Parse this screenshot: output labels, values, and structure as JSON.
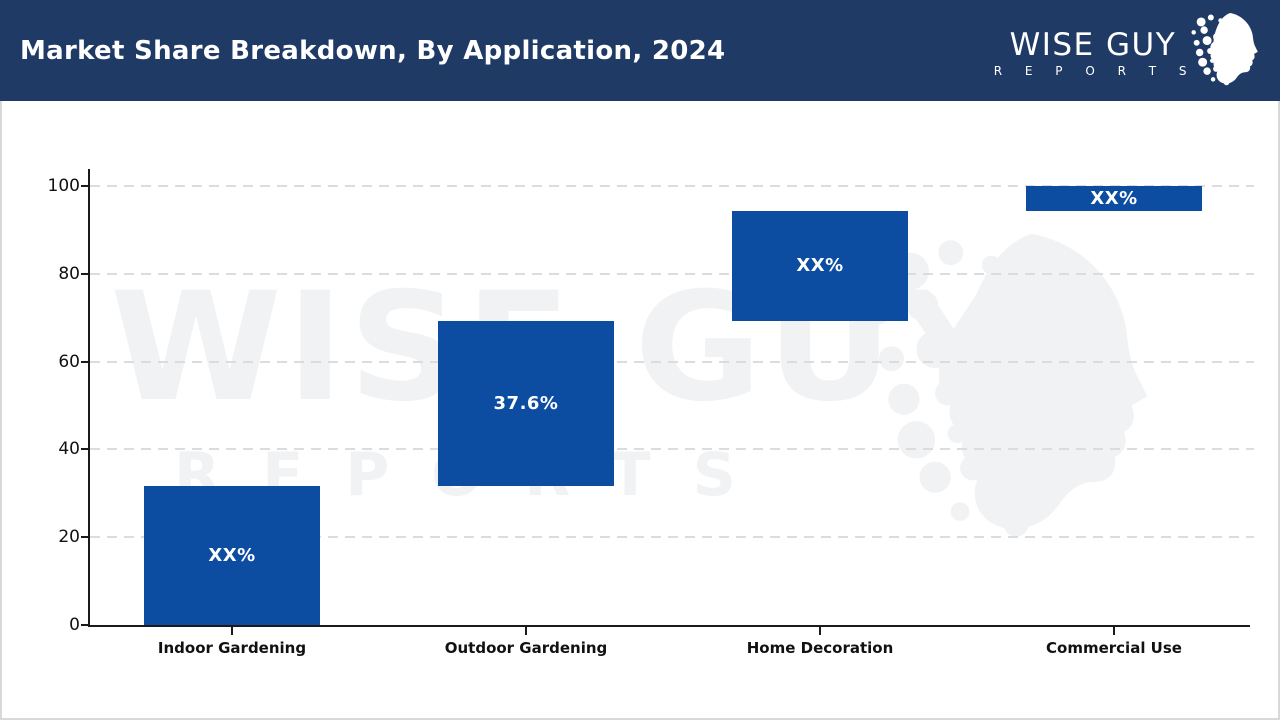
{
  "header": {
    "title": "Market Share Breakdown, By Application, 2024",
    "logo": {
      "wise_guy": "WISE GUY",
      "reports": "R E P O R T S"
    }
  },
  "watermark": {
    "wise_guy": "WISE GUY",
    "reports": "REPORTS"
  },
  "colors": {
    "header_bg": "#203a66",
    "bar_fill": "#0c4da2",
    "bar_label_text": "#ffffff",
    "gridline": "#dcdcdc",
    "axis": "#1a1a1a",
    "watermark": "#f1f2f4",
    "panel_border": "#d9d9d9"
  },
  "chart_data": {
    "type": "bar",
    "subtype": "floating-waterfall",
    "title": "Market Share Breakdown, By Application, 2024",
    "xlabel": "",
    "ylabel": "",
    "ylim": [
      0,
      100
    ],
    "yticks": [
      0,
      20,
      40,
      60,
      80,
      100
    ],
    "grid": "horizontal dashed",
    "legend": "none",
    "categories": [
      "Indoor Gardening",
      "Outdoor Gardening",
      "Home Decoration",
      "Commercial Use"
    ],
    "values": [
      31.7,
      37.6,
      25.0,
      5.7
    ],
    "segments": [
      {
        "category": "Indoor Gardening",
        "start": 0,
        "end": 31.7,
        "label": "XX%"
      },
      {
        "category": "Outdoor Gardening",
        "start": 31.7,
        "end": 69.3,
        "label": "37.6%"
      },
      {
        "category": "Home Decoration",
        "start": 69.3,
        "end": 94.3,
        "label": "XX%"
      },
      {
        "category": "Commercial Use",
        "start": 94.3,
        "end": 100,
        "label": "XX%"
      }
    ]
  }
}
